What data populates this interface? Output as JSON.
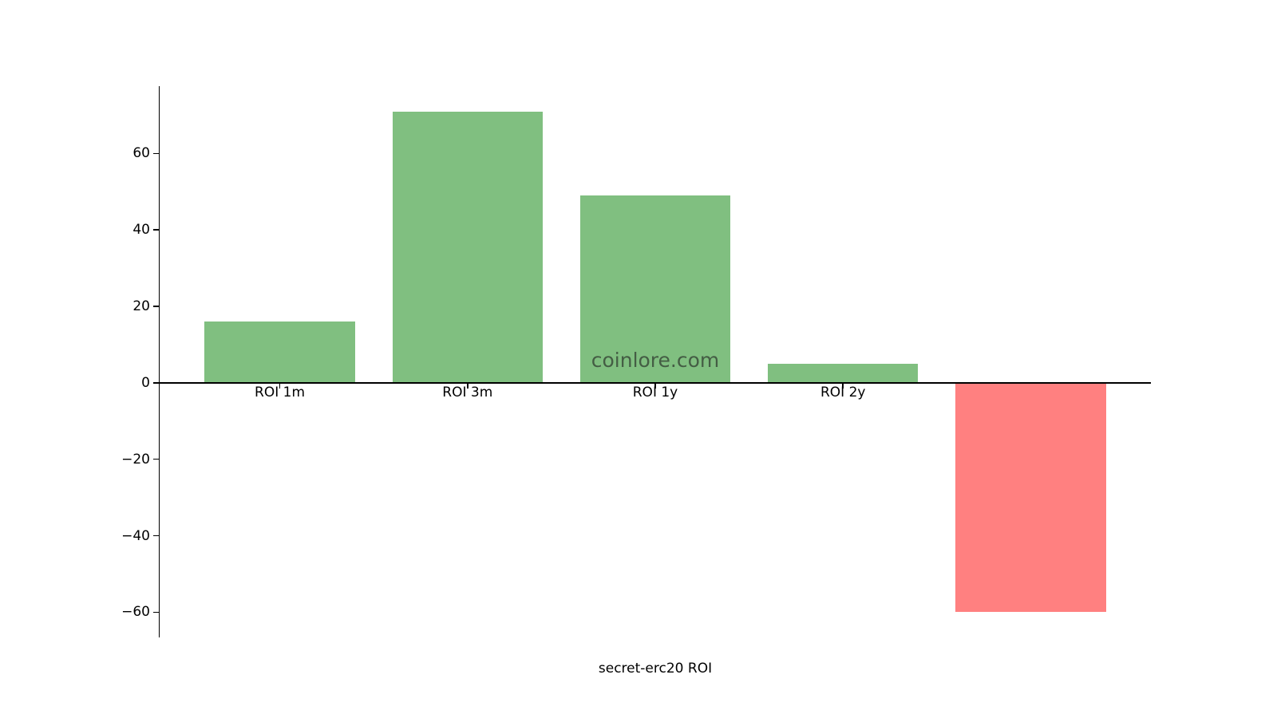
{
  "figure": {
    "background": "#ffffff"
  },
  "watermark": {
    "text": "coinlore.com",
    "color_hex": "#2d372d"
  },
  "chart_data": {
    "type": "bar",
    "categories": [
      "ROI 1m",
      "ROI 3m",
      "ROI 1y",
      "ROI 2y",
      ""
    ],
    "values": [
      16,
      71,
      49,
      5,
      -60
    ],
    "bar_colors": [
      "#80bf80",
      "#80bf80",
      "#80bf80",
      "#80bf80",
      "#ff8080"
    ],
    "colors": {
      "positive": "#80bf80",
      "negative": "#ff8080",
      "axis": "#000000",
      "text": "#000000"
    },
    "title": "",
    "xlabel": "secret-erc20 ROI",
    "ylabel": "",
    "yticks": [
      -60,
      -40,
      -20,
      0,
      20,
      40,
      60
    ],
    "ytick_labels": [
      "−60",
      "−40",
      "−20",
      "0",
      "20",
      "40",
      "60"
    ],
    "ylim": [
      -66.6,
      77.6
    ],
    "grid": false,
    "legend": null,
    "bar_width_frac": 0.8,
    "notes": "fifth bar x-axis label is hidden behind the red bar"
  }
}
